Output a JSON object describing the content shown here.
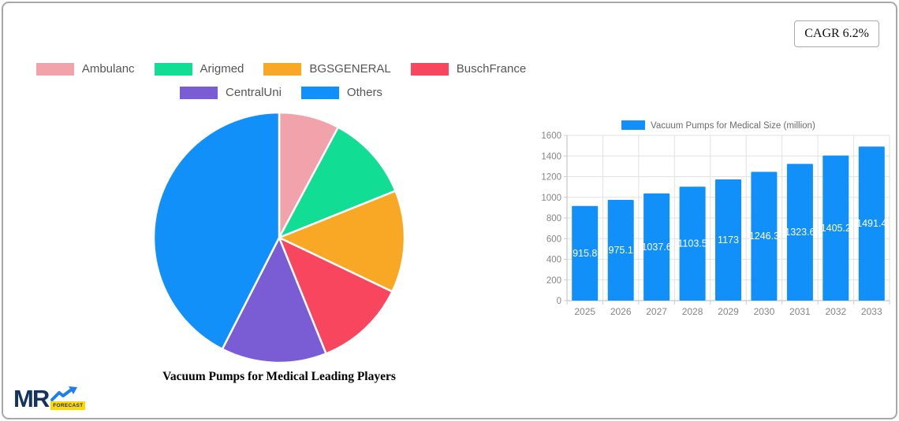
{
  "card": {
    "cagr_badge": "CAGR 6.2%"
  },
  "logo": {
    "mr_text": "MR",
    "forecast_text": "FORECAST",
    "navy": "#14335f",
    "arrow_blue": "#1f7fe8",
    "badge_yellow": "#ffd905"
  },
  "chart_data": [
    {
      "type": "pie",
      "title": "Vacuum Pumps for Medical Leading Players",
      "labels": [
        "Ambulanc",
        "Arigmed",
        "BGSGENERAL",
        "BuschFrance",
        "CentralUni",
        "Others"
      ],
      "values_pct": [
        7.8,
        11.1,
        13.2,
        11.8,
        13.6,
        42.5
      ],
      "colors": [
        "#f2a2ab",
        "#12dd95",
        "#f9a826",
        "#f8465f",
        "#7a5cd5",
        "#1090f8"
      ],
      "start_angle": "top",
      "direction": "clockwise",
      "legend_position": "top"
    },
    {
      "type": "bar",
      "legend_label": "Vacuum Pumps for Medical Size (million)",
      "categories": [
        "2025",
        "2026",
        "2027",
        "2028",
        "2029",
        "2030",
        "2031",
        "2032",
        "2033"
      ],
      "values": [
        915.8,
        975.1,
        1037.6,
        1103.5,
        1173,
        1246.3,
        1323.6,
        1405.2,
        1491.4
      ],
      "value_labels": [
        "915.8",
        "975.1",
        "1037.6",
        "1103.5",
        "1173",
        "1246.3",
        "1323.6",
        "1405.2",
        "1491.4"
      ],
      "bar_color": "#1090f8",
      "value_label_color": "#ffffff",
      "ylim": [
        0,
        1600
      ],
      "yticks": [
        0,
        200,
        400,
        600,
        800,
        1000,
        1200,
        1400,
        1600
      ],
      "grid": true,
      "legend_position": "top"
    }
  ]
}
